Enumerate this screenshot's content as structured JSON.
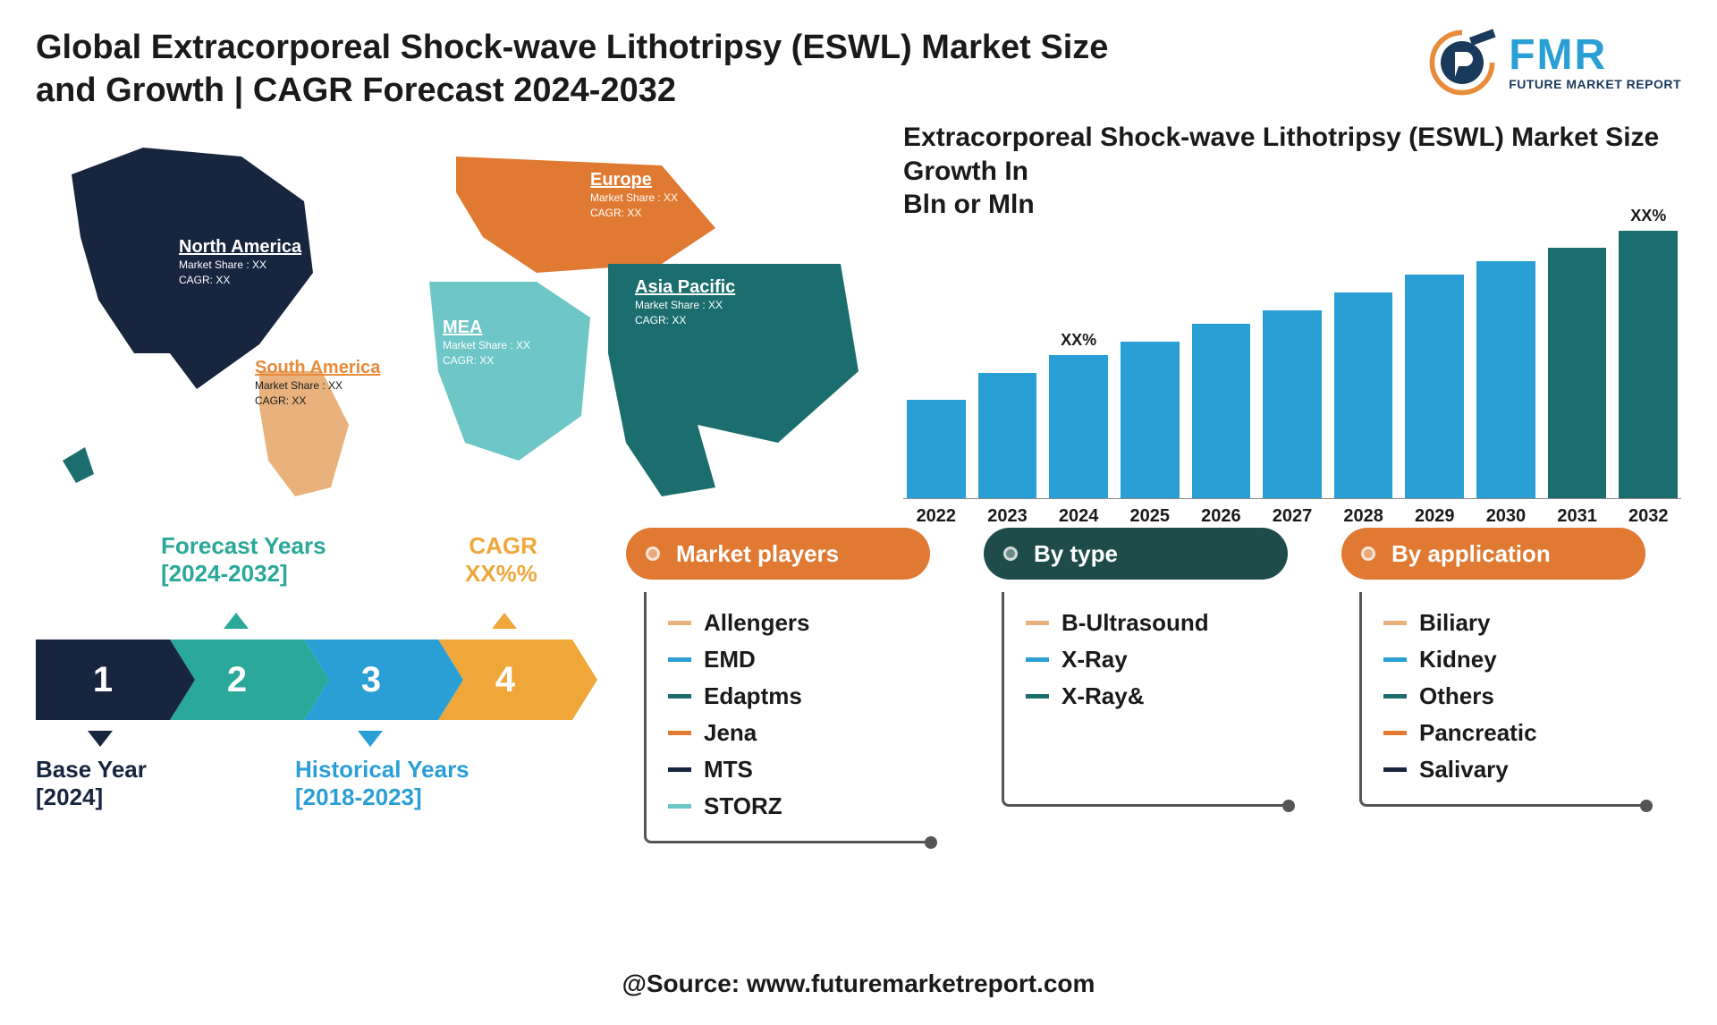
{
  "header": {
    "title": "Global Extracorporeal Shock-wave Lithotripsy (ESWL) Market Size and Growth | CAGR Forecast 2024-2032",
    "logo_fmr": "FMR",
    "logo_sub": "FUTURE MARKET REPORT"
  },
  "logo_colors": {
    "orange": "#e88b3a",
    "blue": "#2a9fd6",
    "navy": "#1a3a5c"
  },
  "map": {
    "regions": [
      {
        "key": "na",
        "name": "North America",
        "share": "Market Share : XX",
        "cagr": "CAGR: XX",
        "fill": "#18253f"
      },
      {
        "key": "sa",
        "name": "South America",
        "share": "Market Share : XX",
        "cagr": "CAGR: XX",
        "fill": "#e9b27c"
      },
      {
        "key": "eu",
        "name": "Europe",
        "share": "Market Share : XX",
        "cagr": "CAGR: XX",
        "fill": "#e07a32"
      },
      {
        "key": "mea",
        "name": "MEA",
        "share": "Market Share : XX",
        "cagr": "CAGR: XX",
        "fill": "#6fc6c6"
      },
      {
        "key": "ap",
        "name": "Asia Pacific",
        "share": "Market Share : XX",
        "cagr": "CAGR: XX",
        "fill": "#1c6e6e"
      }
    ]
  },
  "chart": {
    "type": "bar",
    "title": "Extracorporeal Shock-wave Lithotripsy (ESWL) Market Size Growth In\nBln or Mln",
    "categories": [
      "2022",
      "2023",
      "2024",
      "2025",
      "2026",
      "2027",
      "2028",
      "2029",
      "2030",
      "2031",
      "2032"
    ],
    "values": [
      110,
      140,
      160,
      175,
      195,
      210,
      230,
      250,
      265,
      280,
      300
    ],
    "bar_color": "#2a9fd6",
    "hi_color": "#1c6e6e",
    "highlight_indices": [
      9,
      10
    ],
    "ylim": [
      0,
      300
    ],
    "annotations": [
      {
        "index": 2,
        "text": "XX%"
      },
      {
        "index": 10,
        "text": "XX%"
      }
    ],
    "label_fontsize": 20,
    "background_color": "#ffffff"
  },
  "timeline": {
    "steps": [
      {
        "n": "1",
        "bg": "#18253f"
      },
      {
        "n": "2",
        "bg": "#2aa89a"
      },
      {
        "n": "3",
        "bg": "#2a9fd6"
      },
      {
        "n": "4",
        "bg": "#f0a73a"
      }
    ],
    "labels": {
      "base": {
        "line1": "Base Year",
        "line2": "[2024]",
        "color": "#18253f"
      },
      "forecast": {
        "line1": "Forecast Years",
        "line2": "[2024-2032]",
        "color": "#2aa89a"
      },
      "hist": {
        "line1": "Historical Years",
        "line2": "[2018-2023]",
        "color": "#2a9fd6"
      },
      "cagr": {
        "line1": "CAGR",
        "line2": "XX%%",
        "color": "#f0a73a"
      }
    }
  },
  "categories": [
    {
      "pill": "Market players",
      "pill_bg": "#e07a32",
      "tick_colors": [
        "#e9b27c",
        "#2a9fd6",
        "#1c6e6e",
        "#e07a32",
        "#18253f",
        "#6fc6c6"
      ],
      "items": [
        "Allengers",
        "EMD",
        "Edaptms",
        "Jena",
        "MTS",
        "STORZ"
      ]
    },
    {
      "pill": "By type",
      "pill_bg": "#1f4b4b",
      "tick_colors": [
        "#e9b27c",
        "#2a9fd6",
        "#1c6e6e"
      ],
      "items": [
        "B-Ultrasound",
        "X-Ray",
        "X-Ray&"
      ]
    },
    {
      "pill": "By application",
      "pill_bg": "#e07a32",
      "tick_colors": [
        "#e9b27c",
        "#2a9fd6",
        "#1c6e6e",
        "#e07a32",
        "#18253f"
      ],
      "items": [
        "Biliary",
        "Kidney",
        "Others",
        "Pancreatic",
        "Salivary"
      ]
    }
  ],
  "source": "@Source: www.futuremarketreport.com"
}
